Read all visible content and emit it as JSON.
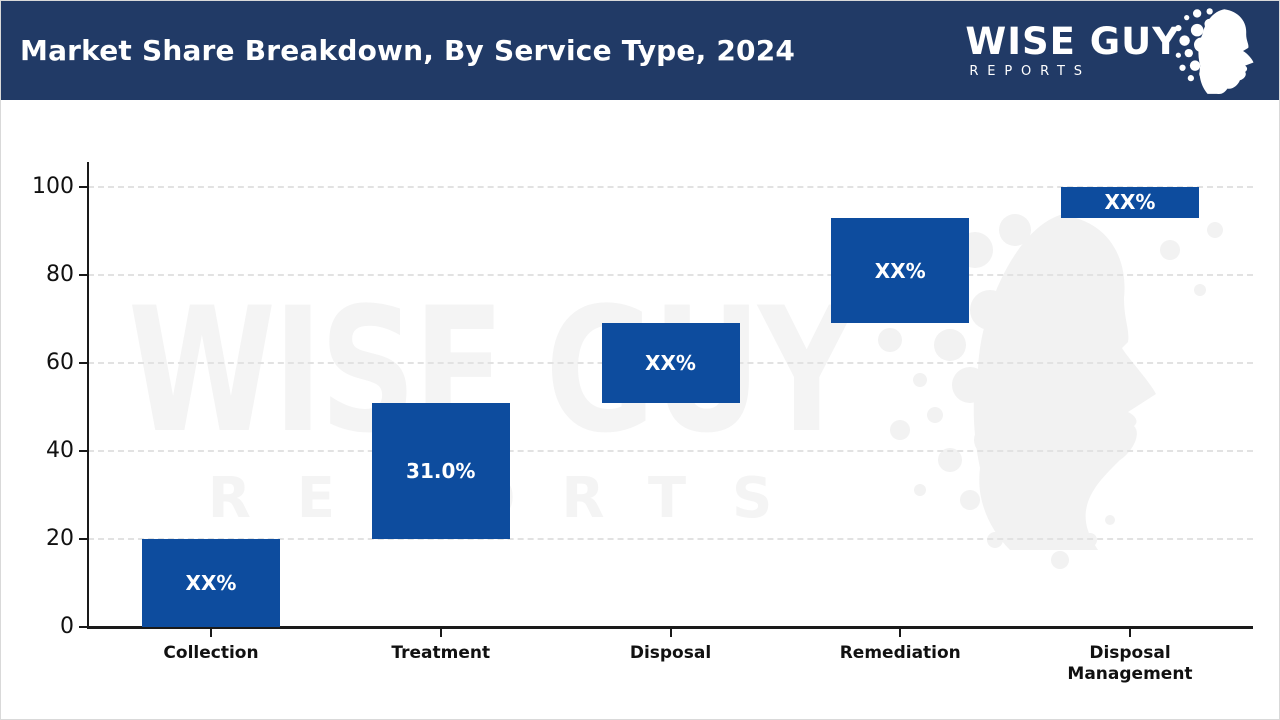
{
  "header": {
    "title": "Market Share Breakdown, By Service Type, 2024",
    "logo": {
      "line1": "WISE GUY",
      "line2": "REPORTS"
    }
  },
  "watermark": {
    "line1": "WISE GUY",
    "line2": "REPORTS"
  },
  "chart_data": {
    "type": "bar",
    "subtype": "waterfall",
    "title": "Market Share Breakdown, By Service Type, 2024",
    "categories": [
      "Collection",
      "Treatment",
      "Disposal",
      "Remediation",
      "Disposal Management"
    ],
    "series": [
      {
        "name": "Market share (%)",
        "segments": [
          [
            0,
            20
          ],
          [
            20,
            51
          ],
          [
            51,
            69
          ],
          [
            69,
            93
          ],
          [
            93,
            100
          ]
        ],
        "values": [
          20,
          31,
          18,
          24,
          7
        ],
        "bar_labels": [
          "XX%",
          "31.0%",
          "XX%",
          "XX%",
          "XX%"
        ]
      }
    ],
    "xlabel": "",
    "ylabel": "",
    "ylim": [
      0,
      100
    ],
    "yticks": [
      0,
      20,
      40,
      60,
      80,
      100
    ],
    "grid": "horizontal-dashed",
    "legend": "none",
    "colors": {
      "bar": "#0d4c9e",
      "bar_label": "#ffffff",
      "axis": "#1a1a1a",
      "grid": "#e2e2e2",
      "header_bg": "#213a66",
      "watermark": "#f2f2f2"
    }
  }
}
